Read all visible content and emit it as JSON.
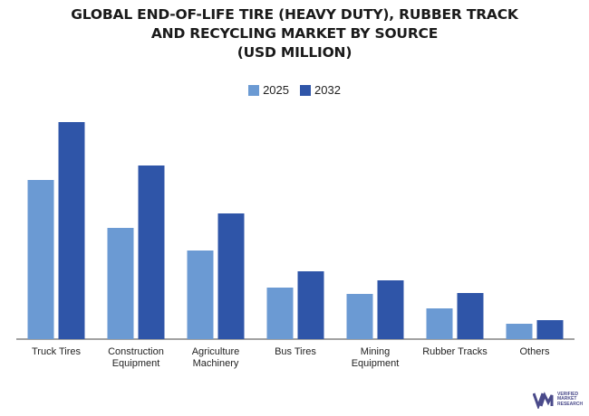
{
  "chart_data": {
    "type": "bar",
    "title_lines": [
      "GLOBAL END-OF-LIFE TIRE (HEAVY DUTY), RUBBER TRACK",
      "AND RECYCLING MARKET BY SOURCE",
      "(USD MILLION)"
    ],
    "categories": [
      [
        "Truck Tires"
      ],
      [
        "Construction",
        "Equipment"
      ],
      [
        "Agriculture",
        "Machinery"
      ],
      [
        "Bus Tires"
      ],
      [
        "Mining",
        "Equipment"
      ],
      [
        "Rubber Tracks"
      ],
      [
        "Others"
      ]
    ],
    "series": [
      {
        "name": "2025",
        "color": "#6b9ad3",
        "values": [
          176,
          123,
          98,
          57,
          50,
          34,
          17
        ]
      },
      {
        "name": "2032",
        "color": "#2f55a8",
        "values": [
          240,
          192,
          139,
          75,
          65,
          51,
          21
        ]
      }
    ],
    "ylim": [
      0,
      260
    ],
    "legend_position": "top-center",
    "grid": false
  },
  "logo": {
    "lines": [
      "VERIFIED",
      "MARKET",
      "RESEARCH"
    ]
  }
}
